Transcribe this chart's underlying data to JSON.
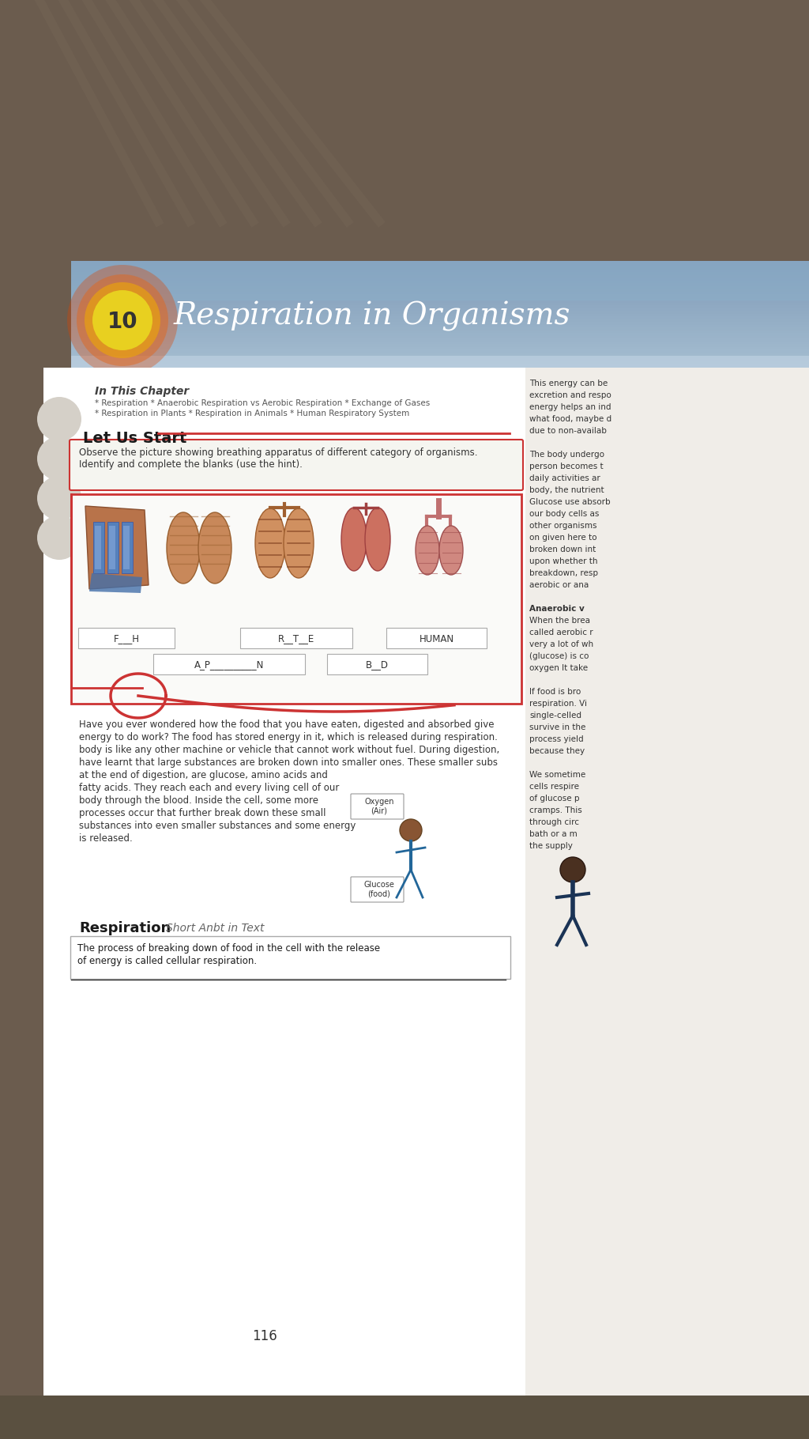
{
  "chapter_number": "10",
  "chapter_title": "Respiration in Organisms",
  "in_this_chapter_title": "In This Chapter",
  "in_this_chapter_line1": "* Respiration * Anaerobic Respiration vs Aerobic Respiration * Exchange of Gases",
  "in_this_chapter_line2": "* Respiration in Plants * Respiration in Animals * Human Respiratory System",
  "let_us_start_title": "Let Us Start",
  "let_us_start_text1": "Observe the picture showing breathing apparatus of different category of organisms.",
  "let_us_start_text2": "Identify and complete the blanks (use the hint).",
  "label1": "F___H",
  "label2": "R__T__E",
  "label3": "HUMAN",
  "label4": "A_P__________N",
  "label5": "B__D",
  "body_text_lines": [
    "Have you ever wondered how the food that you have eaten, digested and absorbed give",
    "energy to do work? The food has stored energy in it, which is released during respiration.",
    "body is like any other machine or vehicle that cannot work without fuel. During digestion,",
    "have learnt that large substances are broken down into smaller ones. These smaller subs",
    "at the end of digestion, are glucose, amino acids and",
    "fatty acids. They reach each and every living cell of our",
    "body through the blood. Inside the cell, some more",
    "processes occur that further break down these small",
    "substances into even smaller substances and some energy",
    "is released."
  ],
  "oxygen_label": "Oxygen\n(Air)",
  "glucose_label": "Glucose\n(food)",
  "respiration_title": "Respiration",
  "respiration_handwritten": "Short Anbt in Text",
  "respiration_def_line1": "The process of breaking down of food in the cell with the release",
  "respiration_def_line2": "of energy is called cellular respiration.",
  "page_number": "116",
  "right_col_text": [
    "This energy can be",
    "excretion and respo",
    "energy helps an ind",
    "what food, maybe d",
    "due to non-availab",
    "",
    "The body undergo",
    "person becomes t",
    "daily activities ar",
    "body, the nutrient",
    "Glucose use absorb",
    "our body cells as",
    "other organisms",
    "on given here to",
    "broken down int",
    "upon whether th",
    "breakdown, resp",
    "aerobic or ana",
    "",
    "Anaerobic v",
    "When the brea",
    "called aerobic r",
    "very a lot of wh",
    "(glucose) is co",
    "oxygen It take",
    "",
    "If food is bro",
    "respiration. Vi",
    "single-celled",
    "survive in the",
    "process yield",
    "because they",
    "",
    "We sometime",
    "cells respire",
    "of glucose p",
    "cramps. This",
    "through circ",
    "bath or a m",
    "the supply"
  ],
  "bg_dark_color": "#6B5C4E",
  "bg_page_color": "#E2DDD5",
  "header_blue": "#8BAEC8",
  "header_light": "#B8CCE0",
  "circle_yellow": "#E8D020",
  "circle_orange_glow": "#E06010",
  "white_page": "#FFFFFF",
  "red_color": "#CC3333",
  "text_dark": "#333333",
  "text_medium": "#555555"
}
